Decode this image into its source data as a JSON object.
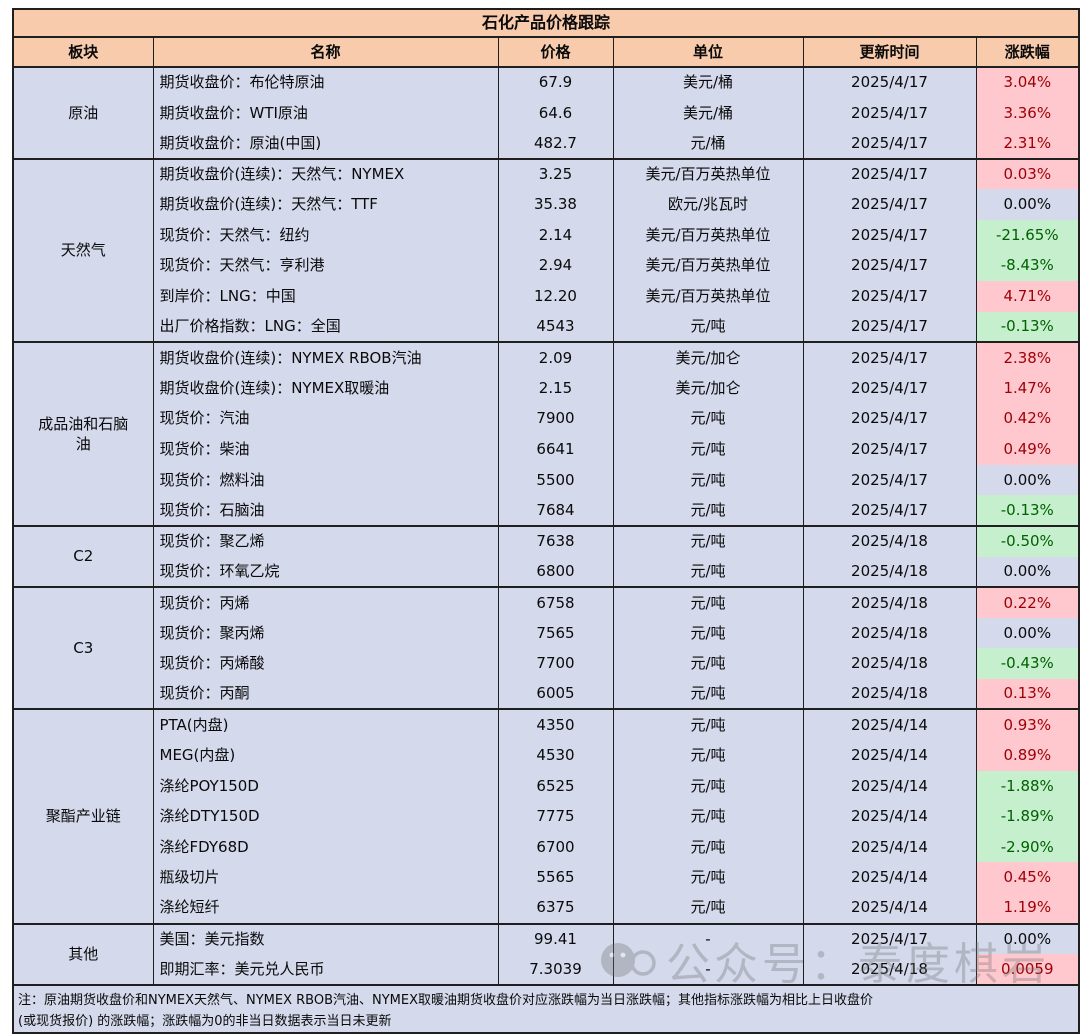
{
  "title": "石化产品价格跟踪",
  "columns": [
    "板块",
    "名称",
    "价格",
    "单位",
    "更新时间",
    "涨跌幅"
  ],
  "sections": [
    {
      "name": "原油",
      "rows": [
        {
          "name": "期货收盘价：布伦特原油",
          "price": "67.9",
          "unit": "美元/桶",
          "date": "2025/4/17",
          "change": "3.04%",
          "dir": "up"
        },
        {
          "name": "期货收盘价：WTI原油",
          "price": "64.6",
          "unit": "美元/桶",
          "date": "2025/4/17",
          "change": "3.36%",
          "dir": "up"
        },
        {
          "name": "期货收盘价：原油(中国)",
          "price": "482.7",
          "unit": "元/桶",
          "date": "2025/4/17",
          "change": "2.31%",
          "dir": "up"
        }
      ]
    },
    {
      "name": "天然气",
      "rows": [
        {
          "name": "期货收盘价(连续)：天然气：NYMEX",
          "price": "3.25",
          "unit": "美元/百万英热单位",
          "date": "2025/4/17",
          "change": "0.03%",
          "dir": "up"
        },
        {
          "name": "期货收盘价(连续)：天然气：TTF",
          "price": "35.38",
          "unit": "欧元/兆瓦时",
          "date": "2025/4/17",
          "change": "0.00%",
          "dir": "zero"
        },
        {
          "name": "现货价：天然气：纽约",
          "price": "2.14",
          "unit": "美元/百万英热单位",
          "date": "2025/4/17",
          "change": "-21.65%",
          "dir": "down"
        },
        {
          "name": "现货价：天然气：亨利港",
          "price": "2.94",
          "unit": "美元/百万英热单位",
          "date": "2025/4/17",
          "change": "-8.43%",
          "dir": "down"
        },
        {
          "name": "到岸价：LNG：中国",
          "price": "12.20",
          "unit": "美元/百万英热单位",
          "date": "2025/4/17",
          "change": "4.71%",
          "dir": "up"
        },
        {
          "name": "出厂价格指数：LNG：全国",
          "price": "4543",
          "unit": "元/吨",
          "date": "2025/4/17",
          "change": "-0.13%",
          "dir": "down"
        }
      ]
    },
    {
      "name": "成品油和石脑油",
      "rows": [
        {
          "name": "期货收盘价(连续)：NYMEX RBOB汽油",
          "price": "2.09",
          "unit": "美元/加仑",
          "date": "2025/4/17",
          "change": "2.38%",
          "dir": "up"
        },
        {
          "name": "期货收盘价(连续)：NYMEX取暖油",
          "price": "2.15",
          "unit": "美元/加仑",
          "date": "2025/4/17",
          "change": "1.47%",
          "dir": "up"
        },
        {
          "name": "现货价：汽油",
          "price": "7900",
          "unit": "元/吨",
          "date": "2025/4/17",
          "change": "0.42%",
          "dir": "up"
        },
        {
          "name": "现货价：柴油",
          "price": "6641",
          "unit": "元/吨",
          "date": "2025/4/17",
          "change": "0.49%",
          "dir": "up"
        },
        {
          "name": "现货价：燃料油",
          "price": "5500",
          "unit": "元/吨",
          "date": "2025/4/17",
          "change": "0.00%",
          "dir": "zero"
        },
        {
          "name": "现货价：石脑油",
          "price": "7684",
          "unit": "元/吨",
          "date": "2025/4/17",
          "change": "-0.13%",
          "dir": "down"
        }
      ]
    },
    {
      "name": "C2",
      "rows": [
        {
          "name": "现货价：聚乙烯",
          "price": "7638",
          "unit": "元/吨",
          "date": "2025/4/18",
          "change": "-0.50%",
          "dir": "down"
        },
        {
          "name": "现货价：环氧乙烷",
          "price": "6800",
          "unit": "元/吨",
          "date": "2025/4/18",
          "change": "0.00%",
          "dir": "zero"
        }
      ]
    },
    {
      "name": "C3",
      "rows": [
        {
          "name": "现货价：丙烯",
          "price": "6758",
          "unit": "元/吨",
          "date": "2025/4/18",
          "change": "0.22%",
          "dir": "up"
        },
        {
          "name": "现货价：聚丙烯",
          "price": "7565",
          "unit": "元/吨",
          "date": "2025/4/18",
          "change": "0.00%",
          "dir": "zero"
        },
        {
          "name": "现货价：丙烯酸",
          "price": "7700",
          "unit": "元/吨",
          "date": "2025/4/18",
          "change": "-0.43%",
          "dir": "down"
        },
        {
          "name": "现货价：丙酮",
          "price": "6005",
          "unit": "元/吨",
          "date": "2025/4/18",
          "change": "0.13%",
          "dir": "up"
        }
      ]
    },
    {
      "name": "聚酯产业链",
      "rows": [
        {
          "name": "PTA(内盘)",
          "price": "4350",
          "unit": "元/吨",
          "date": "2025/4/14",
          "change": "0.93%",
          "dir": "up"
        },
        {
          "name": "MEG(内盘)",
          "price": "4530",
          "unit": "元/吨",
          "date": "2025/4/14",
          "change": "0.89%",
          "dir": "up"
        },
        {
          "name": "涤纶POY150D",
          "price": "6525",
          "unit": "元/吨",
          "date": "2025/4/14",
          "change": "-1.88%",
          "dir": "down"
        },
        {
          "name": "涤纶DTY150D",
          "price": "7775",
          "unit": "元/吨",
          "date": "2025/4/14",
          "change": "-1.89%",
          "dir": "down"
        },
        {
          "name": "涤纶FDY68D",
          "price": "6700",
          "unit": "元/吨",
          "date": "2025/4/14",
          "change": "-2.90%",
          "dir": "down"
        },
        {
          "name": "瓶级切片",
          "price": "5565",
          "unit": "元/吨",
          "date": "2025/4/14",
          "change": "0.45%",
          "dir": "up"
        },
        {
          "name": "涤纶短纤",
          "price": "6375",
          "unit": "元/吨",
          "date": "2025/4/14",
          "change": "1.19%",
          "dir": "up"
        }
      ]
    },
    {
      "name": "其他",
      "rows": [
        {
          "name": "美国：美元指数",
          "price": "99.41",
          "unit": "-",
          "date": "2025/4/17",
          "change": "0.00%",
          "dir": "zero"
        },
        {
          "name": "即期汇率：美元兑人民币",
          "price": "7.3039",
          "unit": "-",
          "date": "2025/4/18",
          "change": "0.0059",
          "dir": "up"
        }
      ]
    }
  ],
  "note": [
    "注：原油期货收盘价和NYMEX天然气、NYMEX RBOB汽油、NYMEX取暖油期货收盘价对应涨跌幅为当日涨跌幅；其他指标涨跌幅为相比上日收盘价",
    "(或现货报价) 的涨跌幅；涨跌幅为0的非当日数据表示当日未更新"
  ],
  "watermark": {
    "text": "公众号：泰度棋岩"
  },
  "colors": {
    "header_bg": "#F8CBAD",
    "body_bg": "#D4D9EC",
    "up_bg": "#FFC7CE",
    "up_text": "#9C0006",
    "down_bg": "#C6EFCE",
    "down_text": "#006100",
    "border": "#1f1f1f"
  }
}
